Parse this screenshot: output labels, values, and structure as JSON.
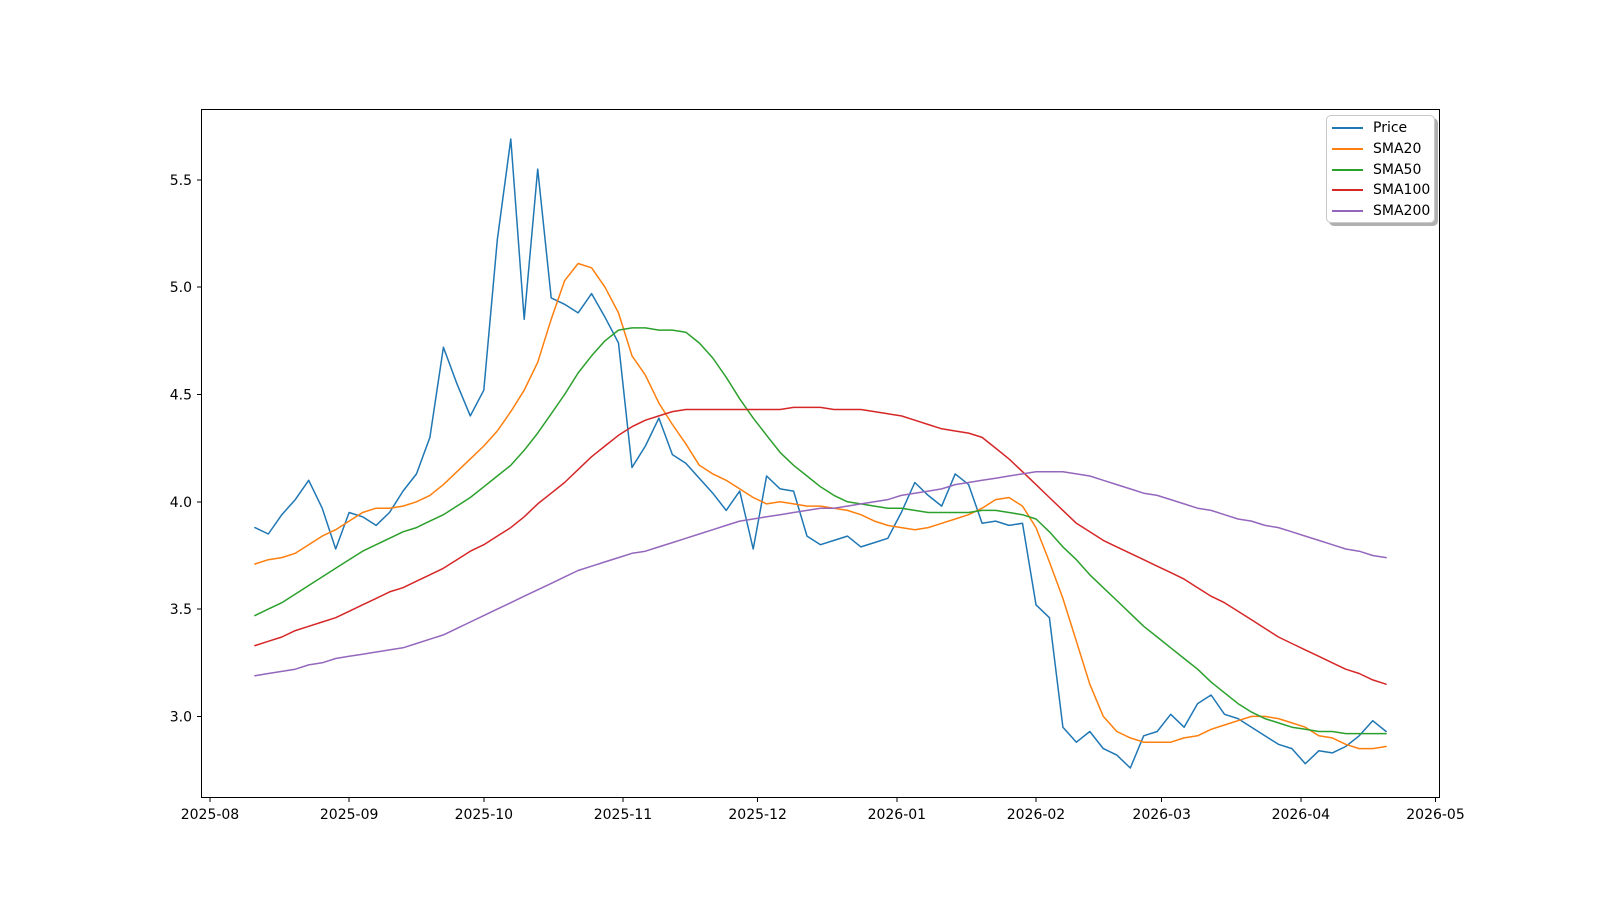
{
  "chart_data": {
    "type": "line",
    "title": "",
    "xlabel": "",
    "ylabel": "",
    "grid": false,
    "legend_position": "upper right",
    "legend_shadow": true,
    "background_color": "#ffffff",
    "axes_edge_color": "#000000",
    "x_tick_labels": [
      "2025-08",
      "2025-09",
      "2025-10",
      "2025-11",
      "2025-12",
      "2026-01",
      "2026-02",
      "2026-03",
      "2026-04",
      "2026-05"
    ],
    "y_tick_labels": [
      "3.0",
      "3.5",
      "4.0",
      "4.5",
      "5.0",
      "5.5"
    ],
    "xlim": [
      "2025-07-30",
      "2026-05-02"
    ],
    "ylim": [
      2.62,
      5.83
    ],
    "x": [
      "2025-08-11",
      "2025-08-14",
      "2025-08-17",
      "2025-08-20",
      "2025-08-23",
      "2025-08-26",
      "2025-08-29",
      "2025-09-01",
      "2025-09-04",
      "2025-09-07",
      "2025-09-10",
      "2025-09-13",
      "2025-09-16",
      "2025-09-19",
      "2025-09-22",
      "2025-09-25",
      "2025-09-28",
      "2025-10-01",
      "2025-10-04",
      "2025-10-07",
      "2025-10-10",
      "2025-10-13",
      "2025-10-16",
      "2025-10-19",
      "2025-10-22",
      "2025-10-25",
      "2025-10-28",
      "2025-10-31",
      "2025-11-03",
      "2025-11-06",
      "2025-11-09",
      "2025-11-12",
      "2025-11-15",
      "2025-11-18",
      "2025-11-21",
      "2025-11-24",
      "2025-11-27",
      "2025-11-30",
      "2025-12-03",
      "2025-12-06",
      "2025-12-09",
      "2025-12-12",
      "2025-12-15",
      "2025-12-18",
      "2025-12-21",
      "2025-12-24",
      "2025-12-27",
      "2025-12-30",
      "2026-01-02",
      "2026-01-05",
      "2026-01-08",
      "2026-01-11",
      "2026-01-14",
      "2026-01-17",
      "2026-01-20",
      "2026-01-23",
      "2026-01-26",
      "2026-01-29",
      "2026-02-01",
      "2026-02-04",
      "2026-02-07",
      "2026-02-10",
      "2026-02-13",
      "2026-02-16",
      "2026-02-19",
      "2026-02-22",
      "2026-02-25",
      "2026-02-28",
      "2026-03-03",
      "2026-03-06",
      "2026-03-09",
      "2026-03-12",
      "2026-03-15",
      "2026-03-18",
      "2026-03-21",
      "2026-03-24",
      "2026-03-27",
      "2026-03-30",
      "2026-04-02",
      "2026-04-05",
      "2026-04-08",
      "2026-04-11",
      "2026-04-14",
      "2026-04-17",
      "2026-04-20"
    ],
    "series": [
      {
        "name": "Price",
        "color": "#1f77b4",
        "values": [
          3.88,
          3.85,
          3.94,
          4.01,
          4.1,
          3.97,
          3.78,
          3.95,
          3.93,
          3.89,
          3.95,
          4.05,
          4.13,
          4.3,
          4.72,
          4.55,
          4.4,
          4.52,
          5.22,
          5.69,
          4.85,
          5.55,
          4.95,
          4.92,
          4.88,
          4.97,
          4.86,
          4.74,
          4.16,
          4.26,
          4.39,
          4.22,
          4.18,
          4.11,
          4.04,
          3.96,
          4.05,
          3.78,
          4.12,
          4.06,
          4.05,
          3.84,
          3.8,
          3.82,
          3.84,
          3.79,
          3.81,
          3.83,
          3.95,
          4.09,
          4.03,
          3.98,
          4.13,
          4.08,
          3.9,
          3.91,
          3.89,
          3.9,
          3.52,
          3.46,
          2.95,
          2.88,
          2.93,
          2.85,
          2.82,
          2.76,
          2.91,
          2.93,
          3.01,
          2.95,
          3.06,
          3.1,
          3.01,
          2.99,
          2.95,
          2.91,
          2.87,
          2.85,
          2.78,
          2.84,
          2.83,
          2.86,
          2.91,
          2.98,
          2.93
        ]
      },
      {
        "name": "SMA20",
        "color": "#ff7f0e",
        "values": [
          3.71,
          3.73,
          3.74,
          3.76,
          3.8,
          3.84,
          3.87,
          3.91,
          3.95,
          3.97,
          3.97,
          3.98,
          4.0,
          4.03,
          4.08,
          4.14,
          4.2,
          4.26,
          4.33,
          4.42,
          4.52,
          4.65,
          4.85,
          5.03,
          5.11,
          5.09,
          5.0,
          4.88,
          4.68,
          4.59,
          4.46,
          4.36,
          4.27,
          4.17,
          4.13,
          4.1,
          4.06,
          4.02,
          3.99,
          4.0,
          3.99,
          3.98,
          3.98,
          3.97,
          3.96,
          3.94,
          3.91,
          3.89,
          3.88,
          3.87,
          3.88,
          3.9,
          3.92,
          3.94,
          3.97,
          4.01,
          4.02,
          3.98,
          3.88,
          3.72,
          3.55,
          3.35,
          3.15,
          3.0,
          2.93,
          2.9,
          2.88,
          2.88,
          2.88,
          2.9,
          2.91,
          2.94,
          2.96,
          2.98,
          3.0,
          3.0,
          2.99,
          2.97,
          2.95,
          2.91,
          2.9,
          2.87,
          2.85,
          2.85,
          2.86
        ]
      },
      {
        "name": "SMA50",
        "color": "#2ca02c",
        "values": [
          3.47,
          3.5,
          3.53,
          3.57,
          3.61,
          3.65,
          3.69,
          3.73,
          3.77,
          3.8,
          3.83,
          3.86,
          3.88,
          3.91,
          3.94,
          3.98,
          4.02,
          4.07,
          4.12,
          4.17,
          4.24,
          4.32,
          4.41,
          4.5,
          4.6,
          4.68,
          4.75,
          4.8,
          4.81,
          4.81,
          4.8,
          4.8,
          4.79,
          4.74,
          4.67,
          4.58,
          4.48,
          4.39,
          4.31,
          4.23,
          4.17,
          4.12,
          4.07,
          4.03,
          4.0,
          3.99,
          3.98,
          3.97,
          3.97,
          3.96,
          3.95,
          3.95,
          3.95,
          3.95,
          3.96,
          3.96,
          3.95,
          3.94,
          3.92,
          3.86,
          3.79,
          3.73,
          3.66,
          3.6,
          3.54,
          3.48,
          3.42,
          3.37,
          3.32,
          3.27,
          3.22,
          3.16,
          3.11,
          3.06,
          3.02,
          2.99,
          2.97,
          2.95,
          2.94,
          2.93,
          2.93,
          2.92,
          2.92,
          2.92,
          2.92
        ]
      },
      {
        "name": "SMA100",
        "color": "#d62728",
        "values": [
          3.33,
          3.35,
          3.37,
          3.4,
          3.42,
          3.44,
          3.46,
          3.49,
          3.52,
          3.55,
          3.58,
          3.6,
          3.63,
          3.66,
          3.69,
          3.73,
          3.77,
          3.8,
          3.84,
          3.88,
          3.93,
          3.99,
          4.04,
          4.09,
          4.15,
          4.21,
          4.26,
          4.31,
          4.35,
          4.38,
          4.4,
          4.42,
          4.43,
          4.43,
          4.43,
          4.43,
          4.43,
          4.43,
          4.43,
          4.43,
          4.44,
          4.44,
          4.44,
          4.43,
          4.43,
          4.43,
          4.42,
          4.41,
          4.4,
          4.38,
          4.36,
          4.34,
          4.33,
          4.32,
          4.3,
          4.25,
          4.2,
          4.14,
          4.08,
          4.02,
          3.96,
          3.9,
          3.86,
          3.82,
          3.79,
          3.76,
          3.73,
          3.7,
          3.67,
          3.64,
          3.6,
          3.56,
          3.53,
          3.49,
          3.45,
          3.41,
          3.37,
          3.34,
          3.31,
          3.28,
          3.25,
          3.22,
          3.2,
          3.17,
          3.15
        ]
      },
      {
        "name": "SMA200",
        "color": "#9467bd",
        "values": [
          3.19,
          3.2,
          3.21,
          3.22,
          3.24,
          3.25,
          3.27,
          3.28,
          3.29,
          3.3,
          3.31,
          3.32,
          3.34,
          3.36,
          3.38,
          3.41,
          3.44,
          3.47,
          3.5,
          3.53,
          3.56,
          3.59,
          3.62,
          3.65,
          3.68,
          3.7,
          3.72,
          3.74,
          3.76,
          3.77,
          3.79,
          3.81,
          3.83,
          3.85,
          3.87,
          3.89,
          3.91,
          3.92,
          3.93,
          3.94,
          3.95,
          3.96,
          3.97,
          3.97,
          3.98,
          3.99,
          4.0,
          4.01,
          4.03,
          4.04,
          4.05,
          4.06,
          4.08,
          4.09,
          4.1,
          4.11,
          4.12,
          4.13,
          4.14,
          4.14,
          4.14,
          4.13,
          4.12,
          4.1,
          4.08,
          4.06,
          4.04,
          4.03,
          4.01,
          3.99,
          3.97,
          3.96,
          3.94,
          3.92,
          3.91,
          3.89,
          3.88,
          3.86,
          3.84,
          3.82,
          3.8,
          3.78,
          3.77,
          3.75,
          3.74
        ]
      }
    ]
  }
}
